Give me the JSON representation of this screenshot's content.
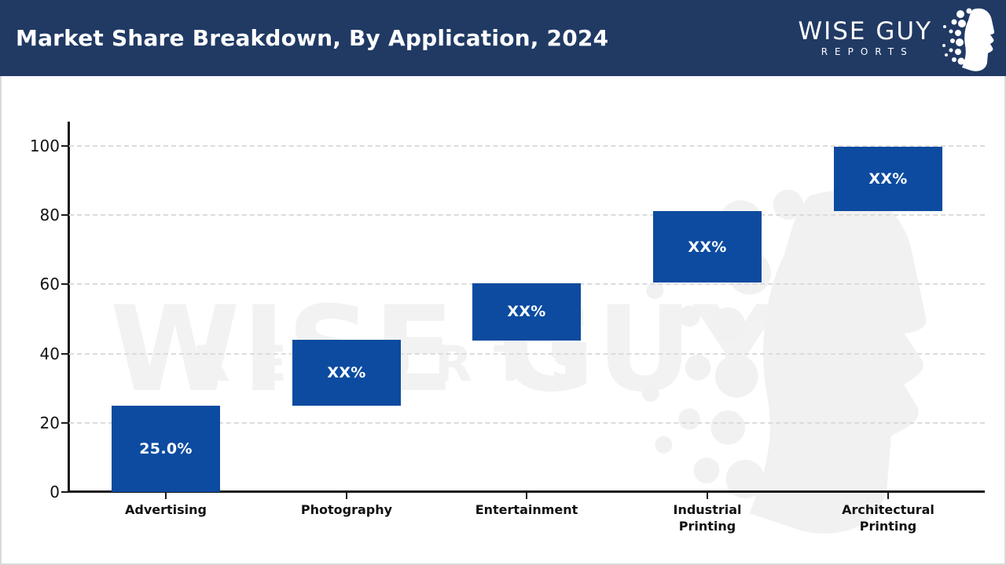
{
  "header": {
    "title": "Market Share Breakdown, By Application, 2024",
    "bg_color": "#203a64",
    "logo": {
      "line1": "WISE GUY",
      "line2": "REPORTS"
    }
  },
  "watermark": {
    "line1": "WISE GUY",
    "line2": "REPORTS"
  },
  "chart_data": {
    "type": "bar",
    "subtype": "waterfall",
    "title": "Market Share Breakdown, By Application, 2024",
    "categories": [
      "Advertising",
      "Photography",
      "Entertainment",
      "Industrial\nPrinting",
      "Architectural\nPrinting"
    ],
    "segments": [
      {
        "category": "Advertising",
        "start": 0,
        "end": 25.0,
        "label": "25.0%"
      },
      {
        "category": "Photography",
        "start": 25.0,
        "end": 44.0,
        "label": "XX%"
      },
      {
        "category": "Entertainment",
        "start": 43.8,
        "end": 60.3,
        "label": "XX%"
      },
      {
        "category": "Industrial Printing",
        "start": 60.5,
        "end": 81.2,
        "label": "XX%"
      },
      {
        "category": "Architectural Printing",
        "start": 81.2,
        "end": 99.8,
        "label": "XX%"
      }
    ],
    "yticks": [
      0,
      20,
      40,
      60,
      80,
      100
    ],
    "ylim": [
      0,
      105
    ],
    "xlabel": "",
    "ylabel": "",
    "legend": "none",
    "grid": "horizontal-dashed",
    "bar_color": "#0c4ba0",
    "bar_label_color": "#ffffff",
    "gridline_color": "#dcdcdc",
    "axis_color": "#1a1a1a"
  }
}
